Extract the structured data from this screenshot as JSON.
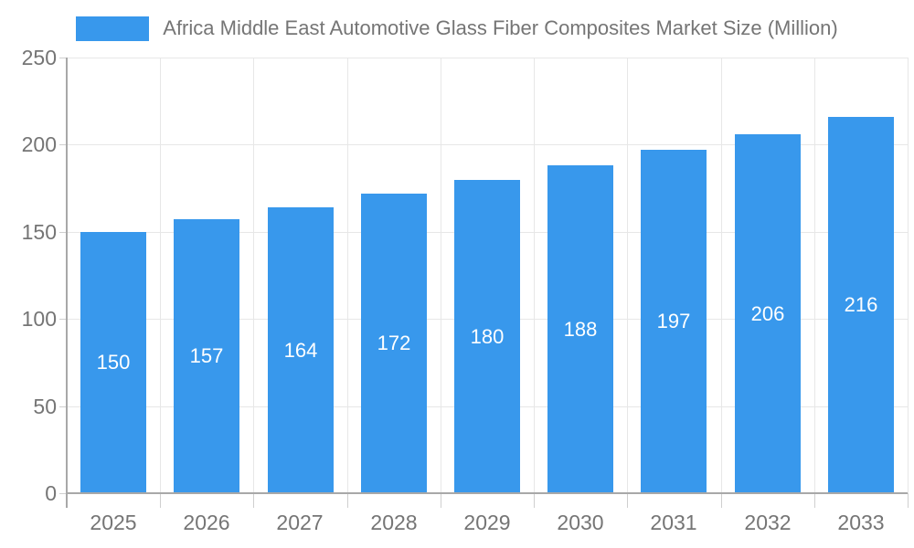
{
  "page": {
    "background": "#ffffff"
  },
  "legend": {
    "items": [
      {
        "label": "Africa Middle East Automotive Glass Fiber Composites Market Size (Million)",
        "color": "#3898EC"
      }
    ]
  },
  "colors": {
    "bar": "#3898EC",
    "bar_value_text": "#ffffff",
    "axis_line": "#a8a8a8",
    "gridline": "#e7e7e7",
    "tick": "#cfcfcf",
    "axis_text": "#757575",
    "background": "#ffffff"
  },
  "chart_data": {
    "type": "bar",
    "title": "Africa Middle East Automotive Glass Fiber Composites Market Size (Million)",
    "categories": [
      "2025",
      "2026",
      "2027",
      "2028",
      "2029",
      "2030",
      "2031",
      "2032",
      "2033"
    ],
    "values": [
      150,
      157,
      164,
      172,
      180,
      188,
      197,
      206,
      216
    ],
    "series_name": "Africa Middle East Automotive Glass Fiber Composites Market Size (Million)",
    "xlabel": "",
    "ylabel": "",
    "ylim": [
      0,
      250
    ],
    "ytick_step": 50,
    "ytick_labels": [
      "0",
      "50",
      "100",
      "150",
      "200",
      "250"
    ],
    "grid": true,
    "legend_position": "top",
    "bar_label_position": "center"
  }
}
